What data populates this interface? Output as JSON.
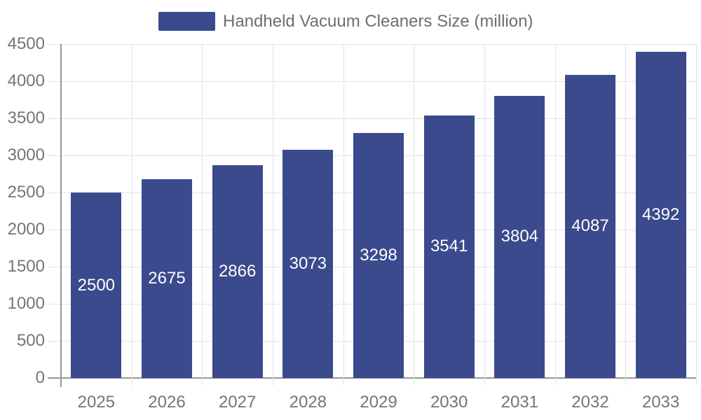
{
  "legend": {
    "label": "Handheld Vacuum Cleaners Size (million)"
  },
  "chart_data": {
    "type": "bar",
    "title": "",
    "legend_entries": [
      "Handheld Vacuum Cleaners Size (million)"
    ],
    "legend_position": "top-center",
    "categories": [
      "2025",
      "2026",
      "2027",
      "2028",
      "2029",
      "2030",
      "2031",
      "2032",
      "2033"
    ],
    "values": [
      2500,
      2675,
      2866,
      3073,
      3298,
      3541,
      3804,
      4087,
      4392
    ],
    "value_labels": [
      "2500",
      "2675",
      "2866",
      "3073",
      "3298",
      "3541",
      "3804",
      "4087",
      "4392"
    ],
    "value_label_position": "inside-middle",
    "xlabel": "",
    "ylabel": "",
    "ylim": [
      0,
      4500
    ],
    "yticks": [
      0,
      500,
      1000,
      1500,
      2000,
      2500,
      3000,
      3500,
      4000,
      4500
    ],
    "grid": true,
    "colors": {
      "bar": "#3A4A8C",
      "grid_line": "#E3E3E3",
      "axis_line": "#979797",
      "tick_text": "#757575",
      "legend_text": "#6E6E6E",
      "value_text": "#FFFFFF"
    }
  }
}
